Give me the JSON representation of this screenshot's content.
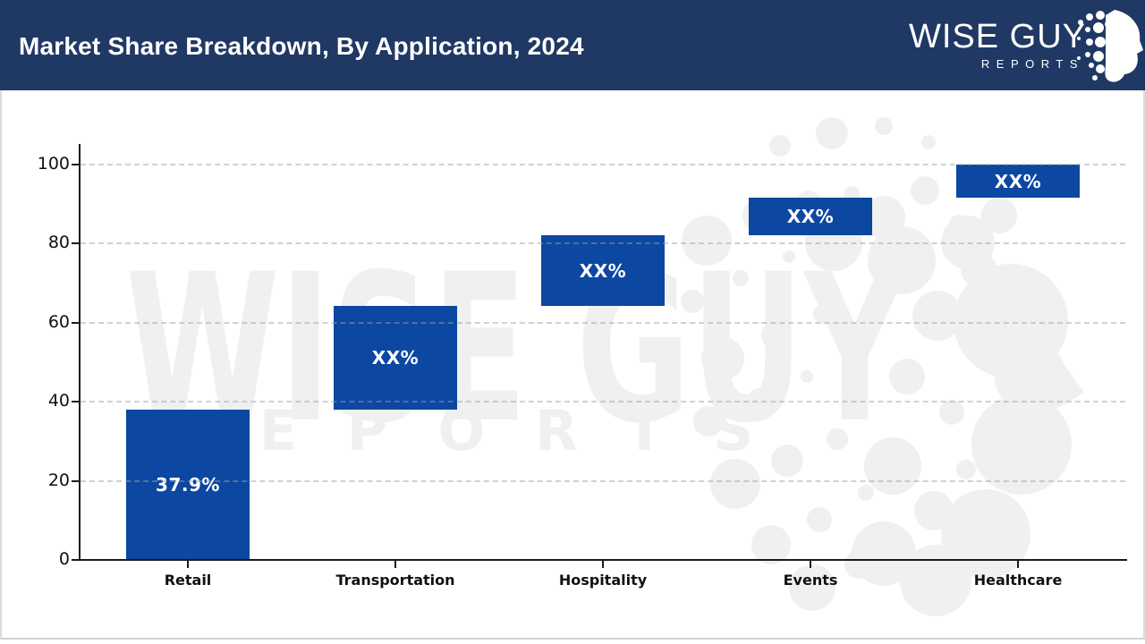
{
  "header": {
    "title": "Market Share Breakdown, By Application, 2024",
    "bg_color": "#203864",
    "logo": {
      "line1": "WISE GUY",
      "line2": "REPORTS"
    }
  },
  "watermark": {
    "line1": "WISE GUY",
    "line2": "REPORTS"
  },
  "chart_data": {
    "type": "bar",
    "subtype": "waterfall",
    "title": "Market Share Breakdown, By Application, 2024",
    "categories": [
      "Retail",
      "Transportation",
      "Hospitality",
      "Events",
      "Healthcare"
    ],
    "segments": [
      {
        "category": "Retail",
        "start": 0,
        "end": 37.9,
        "label": "37.9%"
      },
      {
        "category": "Transportation",
        "start": 37.9,
        "end": 64.2,
        "label": "XX%"
      },
      {
        "category": "Hospitality",
        "start": 64.2,
        "end": 82.1,
        "label": "XX%"
      },
      {
        "category": "Events",
        "start": 82.1,
        "end": 91.6,
        "label": "XX%"
      },
      {
        "category": "Healthcare",
        "start": 91.6,
        "end": 100,
        "label": "XX%"
      }
    ],
    "ylabel": "",
    "xlabel": "",
    "yticks": [
      0,
      20,
      40,
      60,
      80,
      100
    ],
    "ylim": [
      0,
      104
    ],
    "grid": {
      "axis": "y",
      "style": "dashed",
      "color": "#d6d8db",
      "above_bars": true
    },
    "bar_color": "#0c47a1",
    "bar_label_color": "#ffffff",
    "legend": "none"
  }
}
